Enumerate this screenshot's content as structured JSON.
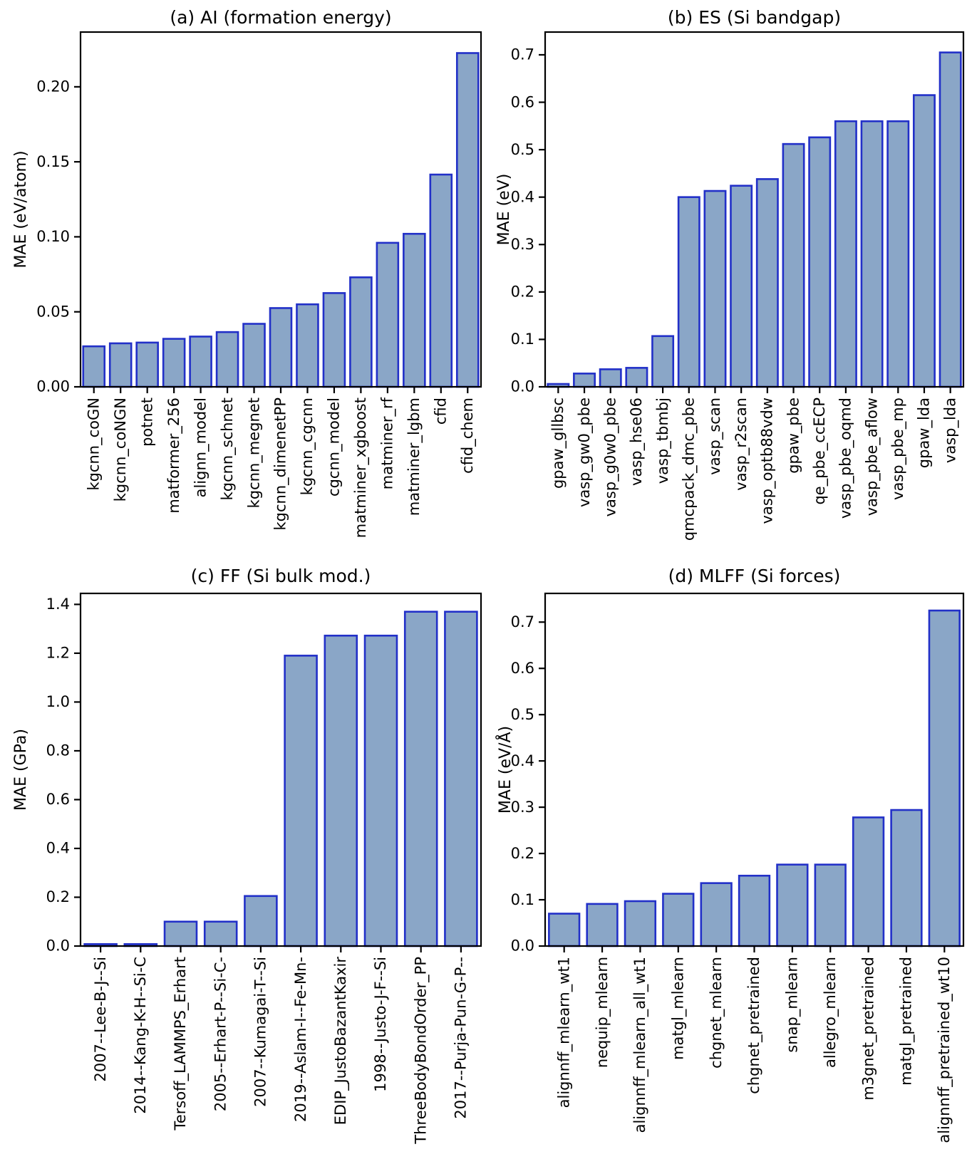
{
  "figure": {
    "description": "Four-panel benchmark figure of MAE bar charts",
    "panels": [
      "a",
      "b",
      "c",
      "d"
    ]
  },
  "style": {
    "bar_fill": "#8aa6c7",
    "bar_edge": "#2230c8",
    "axis_color": "#000000",
    "text_color": "#000000",
    "background": "#ffffff"
  },
  "chart_data": [
    {
      "panel": "a",
      "type": "bar",
      "title": "(a) AI (formation energy)",
      "xlabel": "",
      "ylabel": "MAE (eV/atom)",
      "categories": [
        "kgcnn_coGN",
        "kgcnn_coNGN",
        "potnet",
        "matformer_256",
        "alignn_model",
        "kgcnn_schnet",
        "kgcnn_megnet",
        "kgcnn_dimenetPP",
        "kgcnn_cgcnn",
        "cgcnn_model",
        "matminer_xgboost",
        "matminer_rf",
        "matminer_lgbm",
        "cfid",
        "cfid_chem"
      ],
      "values": [
        0.027,
        0.029,
        0.0295,
        0.032,
        0.0335,
        0.0365,
        0.042,
        0.0525,
        0.055,
        0.0625,
        0.073,
        0.096,
        0.102,
        0.1415,
        0.2225
      ],
      "ylim": [
        0,
        0.2365
      ],
      "ytick_values": [
        0,
        0.05,
        0.1,
        0.15,
        0.2
      ],
      "ytick_labels": [
        "0.00",
        "0.05",
        "0.10",
        "0.15",
        "0.20"
      ],
      "xtick_rotation": 90,
      "grid": false,
      "legend": null
    },
    {
      "panel": "b",
      "type": "bar",
      "title": "(b) ES (Si bandgap)",
      "xlabel": "",
      "ylabel": "MAE (eV)",
      "categories": [
        "gpaw_gllbsc",
        "vasp_gw0_pbe",
        "vasp_g0w0_pbe",
        "vasp_hse06",
        "vasp_tbmbj",
        "qmcpack_dmc_pbe",
        "vasp_scan",
        "vasp_r2scan",
        "vasp_optb88vdw",
        "gpaw_pbe",
        "qe_pbe_ccECP",
        "vasp_pbe_oqmd",
        "vasp_pbe_aflow",
        "vasp_pbe_mp",
        "gpaw_lda",
        "vasp_lda"
      ],
      "values": [
        0.006,
        0.028,
        0.037,
        0.04,
        0.107,
        0.4,
        0.413,
        0.424,
        0.438,
        0.512,
        0.526,
        0.56,
        0.56,
        0.56,
        0.615,
        0.705
      ],
      "ylim": [
        0,
        0.748
      ],
      "ytick_values": [
        0,
        0.1,
        0.2,
        0.3,
        0.4,
        0.5,
        0.6,
        0.7
      ],
      "ytick_labels": [
        "0.0",
        "0.1",
        "0.2",
        "0.3",
        "0.4",
        "0.5",
        "0.6",
        "0.7"
      ],
      "xtick_rotation": 90,
      "grid": false,
      "legend": null
    },
    {
      "panel": "c",
      "type": "bar",
      "title": "(c) FF (Si bulk mod.)",
      "xlabel": "",
      "ylabel": "MAE (GPa)",
      "categories": [
        "2007--Lee-B-J--Si",
        "2014--Kang-K-H--Si-C",
        "Tersoff_LAMMPS_Erhart",
        "2005--Erhart-P--Si-C-",
        "2007--Kumagai-T--Si",
        "2019--Aslam-I--Fe-Mn-",
        "EDIP_JustoBazantKaxir",
        "1998--Justo-J-F--Si",
        "ThreeBodyBondOrder_PP",
        "2017--Purja-Pun-G-P--"
      ],
      "values": [
        0.008,
        0.008,
        0.1,
        0.1,
        0.205,
        1.19,
        1.272,
        1.272,
        1.37,
        1.37
      ],
      "ylim": [
        0,
        1.445
      ],
      "ytick_values": [
        0,
        0.2,
        0.4,
        0.6,
        0.8,
        1.0,
        1.2,
        1.4
      ],
      "ytick_labels": [
        "0.0",
        "0.2",
        "0.4",
        "0.6",
        "0.8",
        "1.0",
        "1.2",
        "1.4"
      ],
      "xtick_rotation": 90,
      "grid": false,
      "legend": null
    },
    {
      "panel": "d",
      "type": "bar",
      "title": "(d) MLFF (Si forces)",
      "xlabel": "",
      "ylabel": "MAE (eV/Å)",
      "categories": [
        "alignnff_mlearn_wt1",
        "nequip_mlearn",
        "alignnff_mlearn_all_wt1",
        "matgl_mlearn",
        "chgnet_mlearn",
        "chgnet_pretrained",
        "snap_mlearn",
        "allegro_mlearn",
        "m3gnet_pretrained",
        "matgl_pretrained",
        "alignnff_pretrained_wt10"
      ],
      "values": [
        0.07,
        0.091,
        0.097,
        0.113,
        0.136,
        0.152,
        0.176,
        0.176,
        0.278,
        0.294,
        0.725
      ],
      "ylim": [
        0,
        0.762
      ],
      "ytick_values": [
        0,
        0.1,
        0.2,
        0.3,
        0.4,
        0.5,
        0.6,
        0.7
      ],
      "ytick_labels": [
        "0.0",
        "0.1",
        "0.2",
        "0.3",
        "0.4",
        "0.5",
        "0.6",
        "0.7"
      ],
      "xtick_rotation": 90,
      "grid": false,
      "legend": null
    }
  ]
}
